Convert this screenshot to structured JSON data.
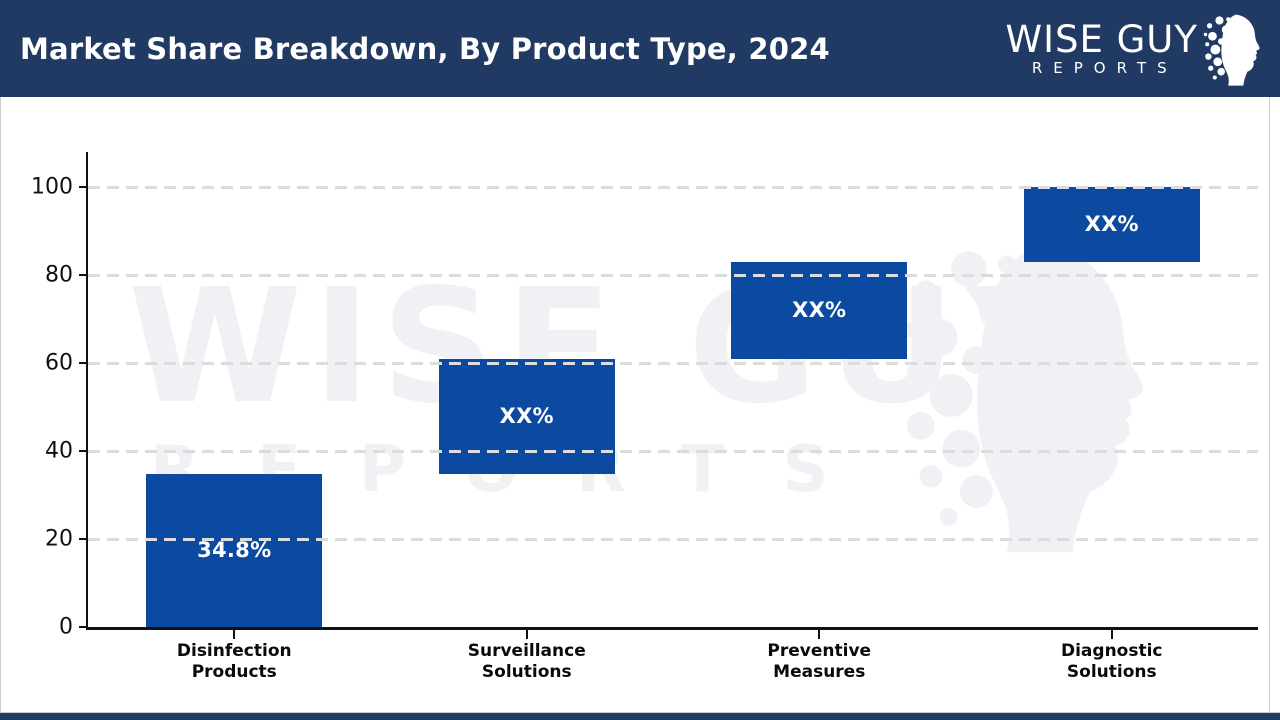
{
  "header": {
    "title": "Market Share Breakdown, By Product Type, 2024",
    "logo": {
      "wordmark": "WISE GUY",
      "subtext": "REPORTS"
    }
  },
  "watermark": {
    "wordmark": "WISE GUY",
    "subtext": "REPORTS"
  },
  "colors": {
    "header_bg": "#213a63",
    "footer_bg": "#213a63",
    "bar": "#0b4aa0",
    "grid": "#dcdcdc",
    "axis": "#111111",
    "watermark": "#f0f1f4",
    "bar_label": "#ffffff"
  },
  "chart_data": {
    "type": "bar",
    "subtype": "floating-waterfall",
    "title": "Market Share Breakdown, By Product Type, 2024",
    "categories": [
      "Disinfection Products",
      "Surveillance Solutions",
      "Preventive Measures",
      "Diagnostic Solutions"
    ],
    "segments": [
      {
        "category": "Disinfection Products",
        "start": 0,
        "end": 34.8,
        "label": "34.8%"
      },
      {
        "category": "Surveillance Solutions",
        "start": 34.8,
        "end": 61,
        "label": "XX%"
      },
      {
        "category": "Preventive Measures",
        "start": 61,
        "end": 83,
        "label": "XX%"
      },
      {
        "category": "Diagnostic Solutions",
        "start": 83,
        "end": 100,
        "label": "XX%"
      }
    ],
    "ylim": [
      0,
      100
    ],
    "yticks": [
      0,
      20,
      40,
      60,
      80,
      100
    ],
    "xlabel": "",
    "ylabel": "",
    "grid": "horizontal-dashed",
    "legend": "none",
    "bar_color": "#0b4aa0",
    "bar_label_color": "#ffffff"
  }
}
